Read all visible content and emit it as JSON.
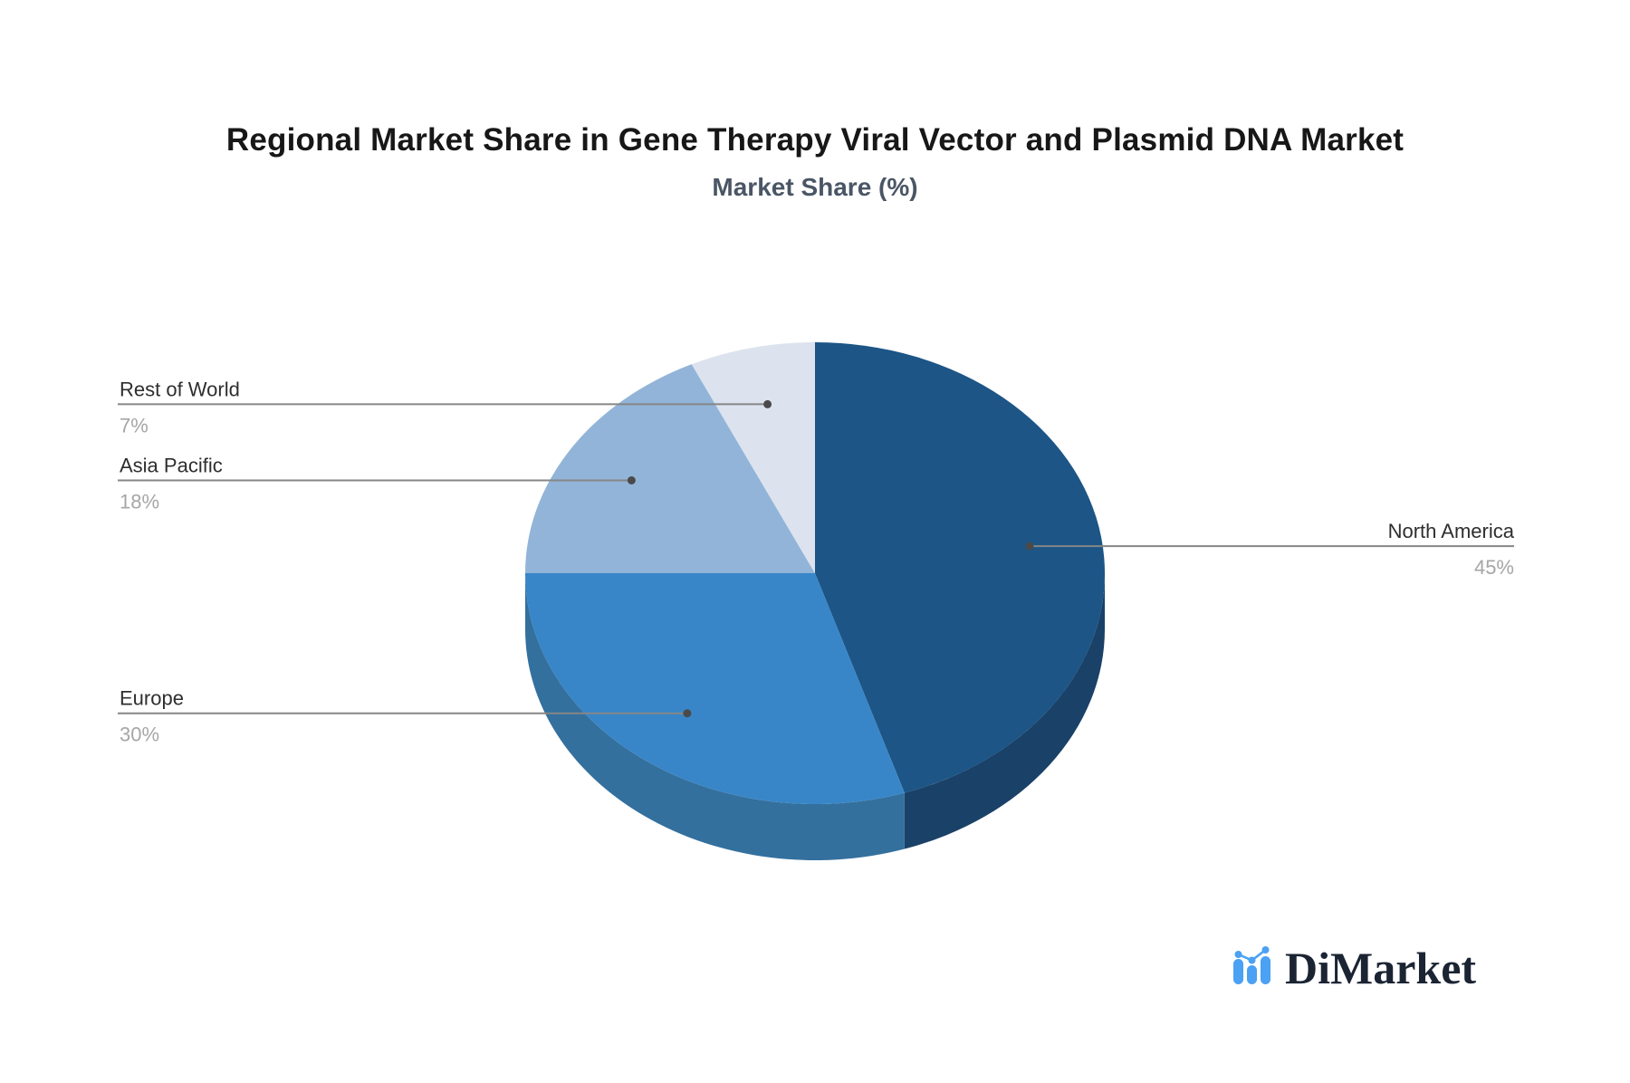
{
  "chart_data": {
    "type": "pie",
    "title": "Regional Market Share in Gene Therapy Viral Vector and Plasmid DNA Market",
    "subtitle": "Market Share (%)",
    "unit": "%",
    "start_angle_deg": 90,
    "direction": "clockwise",
    "effect": "3d-extruded",
    "slices": [
      {
        "label": "North America",
        "value": 45,
        "color": "#1C5586",
        "side_color": "#1A4168",
        "label_side": "right"
      },
      {
        "label": "Europe",
        "value": 30,
        "color": "#3886C8",
        "side_color": "#34709E",
        "label_side": "left"
      },
      {
        "label": "Asia Pacific",
        "value": 18,
        "color": "#92B4D8",
        "side_color": "#7FA3C9",
        "label_side": "left"
      },
      {
        "label": "Rest of World",
        "value": 7,
        "color": "#DCE3EF",
        "side_color": "#C2CCDD",
        "label_side": "left"
      }
    ],
    "labels_show_percent": true,
    "legend": "none",
    "style": {
      "background": "#FFFFFF",
      "title_color": "#171717",
      "subtitle_color": "#4A5665",
      "label_color": "#2E2E2E",
      "value_color": "#A6A6A6",
      "leader_line_color": "#868686",
      "leader_dot_color": "#4A4A4A"
    }
  },
  "logo": {
    "text": "DiMarket",
    "icon": "bar-line-chart-icon",
    "text_color": "#1B2433",
    "icon_color": "#4BA1F3"
  }
}
